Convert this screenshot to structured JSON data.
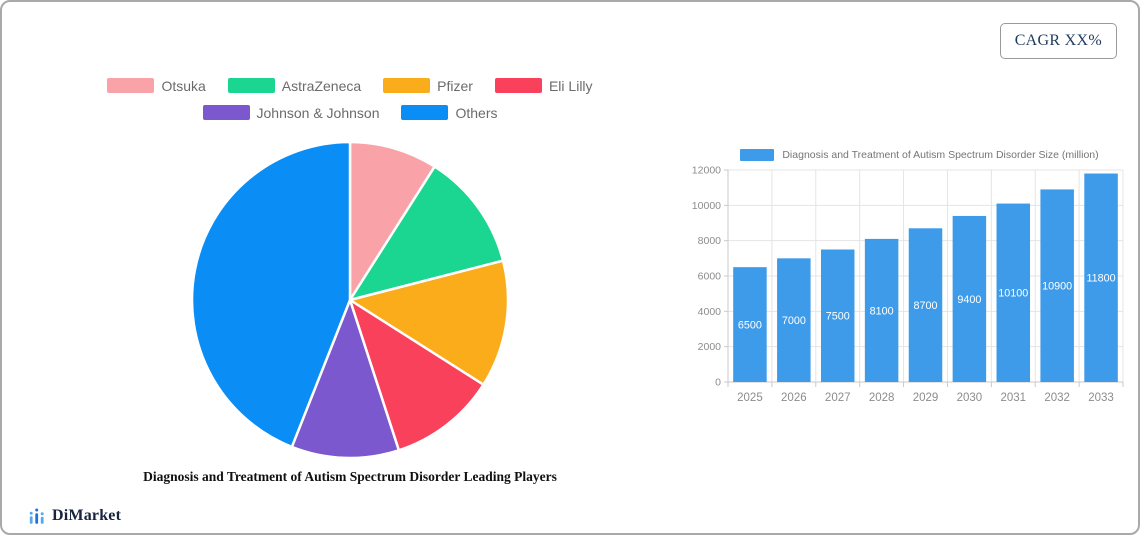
{
  "badge": {
    "label": "CAGR XX%"
  },
  "brand": {
    "name": "DiMarket"
  },
  "chart_data": [
    {
      "type": "pie",
      "title": "Diagnosis and Treatment of Autism Spectrum Disorder Leading Players",
      "labels": [
        "Otsuka",
        "AstraZeneca",
        "Pfizer",
        "Eli Lilly",
        "Johnson & Johnson",
        "Others"
      ],
      "values": [
        9,
        12,
        13,
        11,
        11,
        44
      ],
      "colors": [
        "#F9A2A8",
        "#1BD691",
        "#FBAC1B",
        "#F9415C",
        "#7B58CE",
        "#0A8DF5"
      ],
      "legend_position": "top",
      "legend_rows": [
        [
          0,
          1,
          2,
          3
        ],
        [
          4,
          5
        ]
      ],
      "start_angle_deg": -90,
      "direction": "clockwise",
      "units": "percent"
    },
    {
      "type": "bar",
      "title": "",
      "legend_label": "Diagnosis and Treatment of Autism Spectrum Disorder Size (million)",
      "categories": [
        "2025",
        "2026",
        "2027",
        "2028",
        "2029",
        "2030",
        "2031",
        "2032",
        "2033"
      ],
      "values": [
        6500,
        7000,
        7500,
        8100,
        8700,
        9400,
        10100,
        10900,
        11800
      ],
      "bar_color": "#3D9BE9",
      "value_label_color": "#ffffff",
      "value_label_position": "inside-middle",
      "xlabel": "",
      "ylabel": "",
      "ylim": [
        0,
        12000
      ],
      "y_ticks": [
        0,
        2000,
        4000,
        6000,
        8000,
        10000,
        12000
      ],
      "grid": true,
      "legend_position": "top"
    }
  ]
}
